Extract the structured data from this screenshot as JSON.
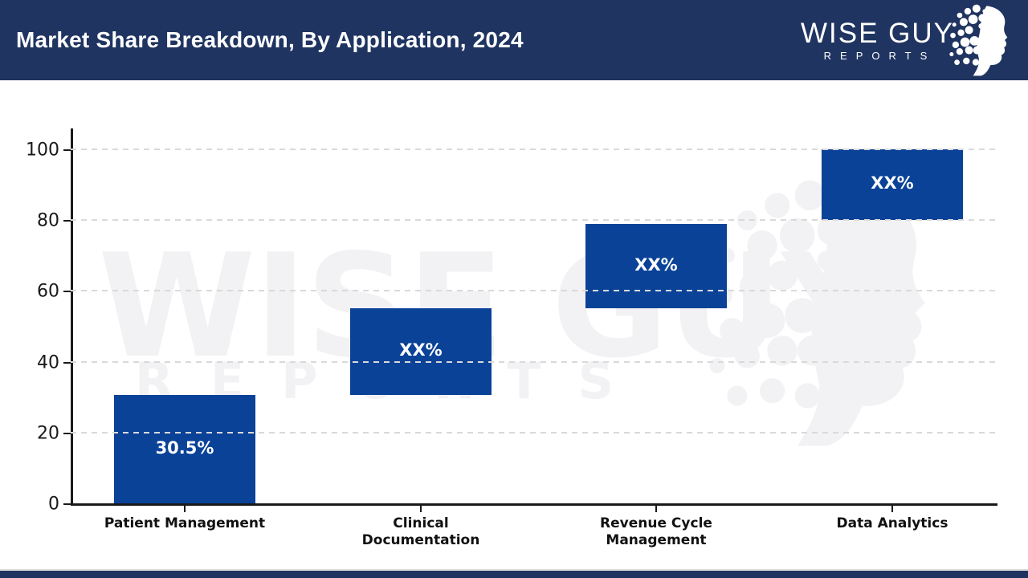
{
  "header": {
    "title": "Market Share Breakdown, By Application, 2024",
    "logo": {
      "line1": "WISE GUY",
      "line2": "REPORTS"
    }
  },
  "watermark": {
    "line1": "WISE GUY",
    "line2": "REPORTS"
  },
  "chart_data": {
    "type": "waterfall",
    "title": "Market Share Breakdown, By Application, 2024",
    "categories": [
      "Patient Management",
      "Clinical Documentation",
      "Revenue Cycle Management",
      "Data Analytics"
    ],
    "categories_display": [
      "Patient Management",
      "Clinical\nDocumentation",
      "Revenue Cycle\nManagement",
      "Data Analytics"
    ],
    "segments": [
      {
        "category": "Patient Management",
        "start": 0,
        "end": 30.5,
        "label": "30.5%"
      },
      {
        "category": "Clinical Documentation",
        "start": 30.5,
        "end": 55,
        "label": "XX%"
      },
      {
        "category": "Revenue Cycle Management",
        "start": 55,
        "end": 79,
        "label": "XX%"
      },
      {
        "category": "Data Analytics",
        "start": 80,
        "end": 100,
        "label": "XX%"
      }
    ],
    "yticks": [
      0,
      20,
      40,
      60,
      80,
      100
    ],
    "ylim": [
      0,
      106
    ],
    "xlabel": "",
    "ylabel": "",
    "legend": "none",
    "grid": "horizontal-dashed",
    "bar_color": "#0a4298",
    "label_color": "#ffffff"
  },
  "colors": {
    "header_bg": "#203461",
    "footer_bg": "#203461",
    "bar_blue": "#0a4298",
    "gridline": "#d9d9d9",
    "axis": "#1a1a1a",
    "watermark": "#f2f2f4"
  }
}
